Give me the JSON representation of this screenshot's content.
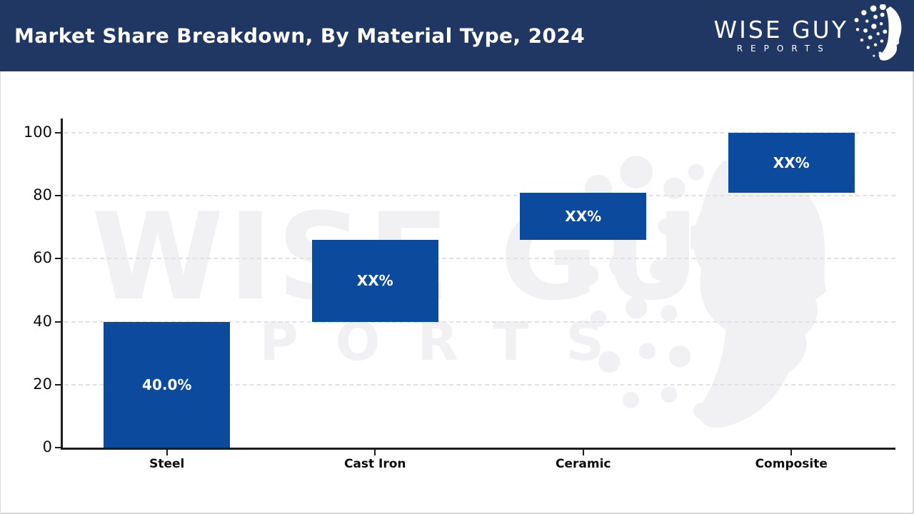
{
  "header": {
    "title": "Market Share Breakdown, By Material Type, 2024",
    "bg_color": "#203764",
    "logo": {
      "line1": "WISE GUY",
      "line2": "REPORTS",
      "icon": "dotted-head-profile-icon"
    }
  },
  "watermark": {
    "line1": "WISE GUY",
    "line2": "REPORTS",
    "icon": "dotted-head-profile-watermark"
  },
  "chart_data": {
    "type": "bar",
    "subtype": "waterfall",
    "title": "Market Share Breakdown, By Material Type, 2024",
    "categories": [
      "Steel",
      "Cast Iron",
      "Ceramic",
      "Composite"
    ],
    "segments": [
      {
        "category": "Steel",
        "start": 0,
        "end": 40,
        "label": "40.0%"
      },
      {
        "category": "Cast Iron",
        "start": 40,
        "end": 66,
        "label": "XX%"
      },
      {
        "category": "Ceramic",
        "start": 66,
        "end": 81,
        "label": "XX%"
      },
      {
        "category": "Composite",
        "start": 81,
        "end": 100,
        "label": "XX%"
      }
    ],
    "values_increment": [
      40,
      26,
      15,
      19
    ],
    "yticks": [
      0,
      20,
      40,
      60,
      80,
      100
    ],
    "ylim": [
      0,
      105
    ],
    "xlabel": "",
    "ylabel": "",
    "grid": "horizontal-dashed",
    "legend": "none",
    "bar_color": "#0c4a9e",
    "bar_label_color": "#ffffff",
    "axis_color": "#1c1c1c",
    "grid_color": "#e2e2e6"
  }
}
